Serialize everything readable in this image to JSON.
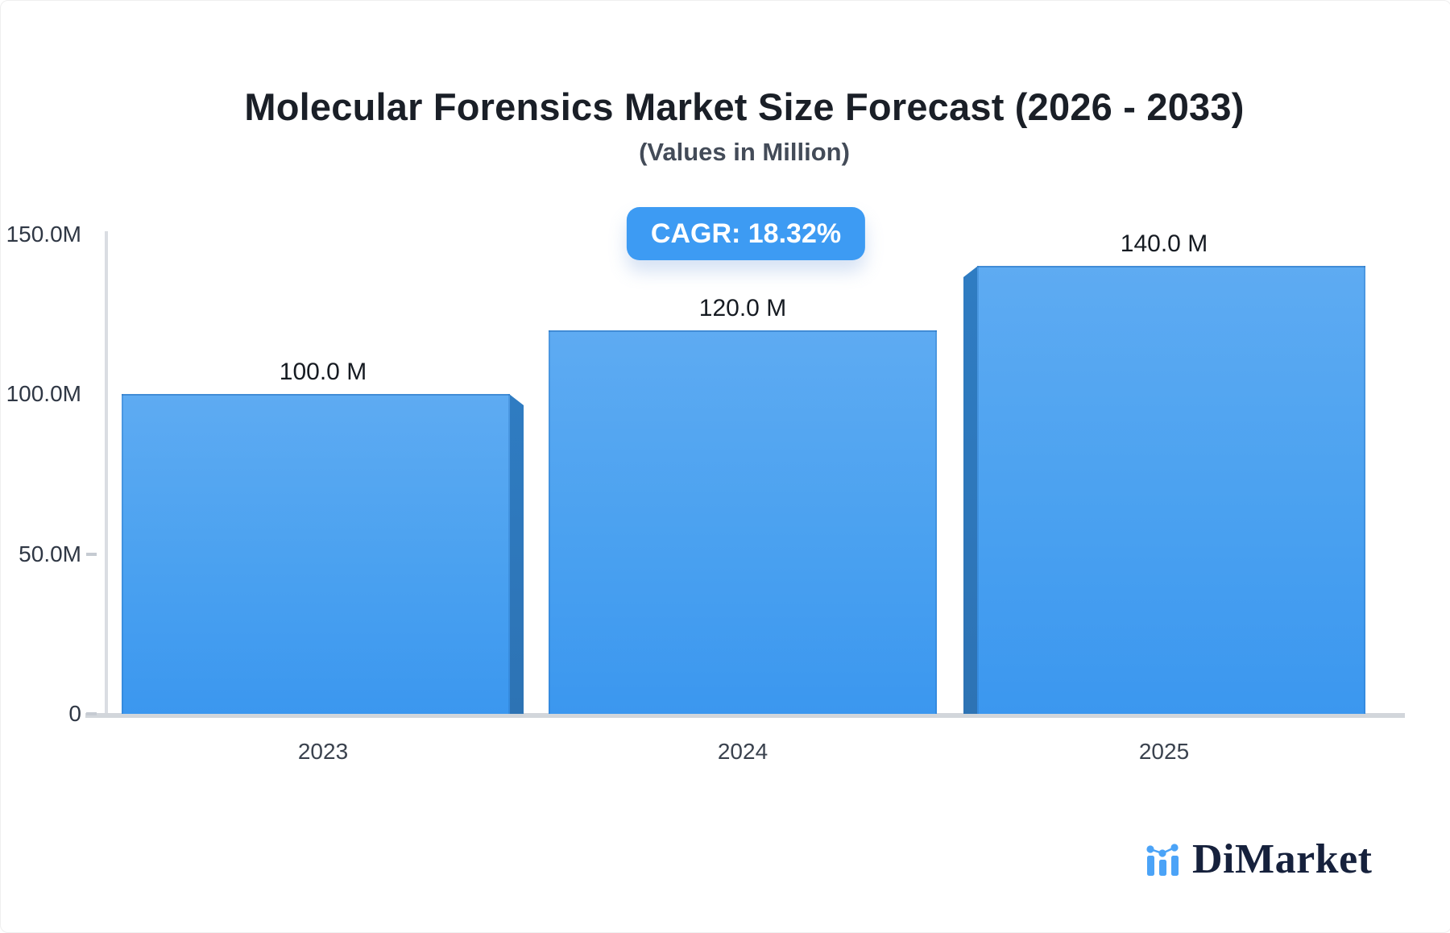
{
  "header": {
    "title": "Molecular Forensics Market Size Forecast (2026 - 2033)",
    "subtitle": "(Values in Million)",
    "cagr_badge": "CAGR: 18.32%"
  },
  "chart_data": {
    "type": "bar",
    "title": "Molecular Forensics Market Size Forecast (2026 - 2033)",
    "subtitle": "(Values in Million)",
    "unit": "Million",
    "cagr_percent": "18.32%",
    "categories": [
      "2023",
      "2024",
      "2025"
    ],
    "values": [
      100,
      120,
      140
    ],
    "bar_labels": [
      "100.0 M",
      "120.0 M",
      "140.0 M"
    ],
    "ylim": [
      0,
      150
    ],
    "yticks": [
      {
        "value": 150,
        "label": "150.0M"
      },
      {
        "value": 100,
        "label": "100.0M"
      },
      {
        "value": 50,
        "label": "50.0M"
      },
      {
        "value": 0,
        "label": "0"
      }
    ],
    "tick_dash_values": [
      50,
      0
    ],
    "grid": false,
    "legend": false,
    "bar_3d_side": [
      "right",
      "none",
      "left"
    ]
  },
  "colors": {
    "bar_top": "#5EABF2",
    "bar_bottom": "#3B97EF",
    "bar_side_3d": "#2E7ABF",
    "badge_blue": "#3D9BF3",
    "axis_gray": "#D2D6DB",
    "title_text": "#1A1F27",
    "subtitle_text": "#434B58",
    "axis_label_text": "#2F3744",
    "logo_navy": "#16213C",
    "logo_blue": "#4BA3F7"
  },
  "logo": {
    "text": "DiMarket"
  }
}
